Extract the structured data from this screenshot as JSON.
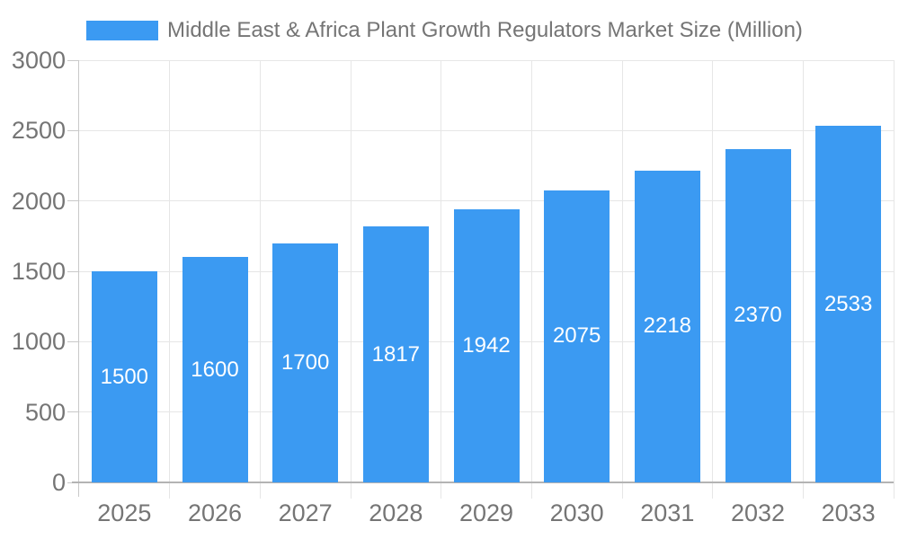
{
  "chart_data": {
    "type": "bar",
    "title": "Middle East & Africa Plant Growth Regulators Market Size (Million)",
    "categories": [
      "2025",
      "2026",
      "2027",
      "2028",
      "2029",
      "2030",
      "2031",
      "2032",
      "2033"
    ],
    "values": [
      1500,
      1600,
      1700,
      1817,
      1942,
      2075,
      2218,
      2370,
      2533
    ],
    "value_labels": [
      "1500",
      "1600",
      "1700",
      "1817",
      "1942",
      "2075",
      "2218",
      "2370",
      "2533"
    ],
    "y_ticks": [
      0,
      500,
      1000,
      1500,
      2000,
      2500,
      3000
    ],
    "ylim": [
      0,
      3000
    ],
    "xlabel": "",
    "ylabel": "",
    "grid": true,
    "legend_position": "top",
    "colors": {
      "bar": "#3b9af2",
      "value_label": "#ffffff",
      "axis_label": "#757575",
      "gridline": "#e6e6e6",
      "axis_line": "#b3b3b3",
      "tick": "#c9c9c9",
      "background": "#ffffff"
    }
  }
}
